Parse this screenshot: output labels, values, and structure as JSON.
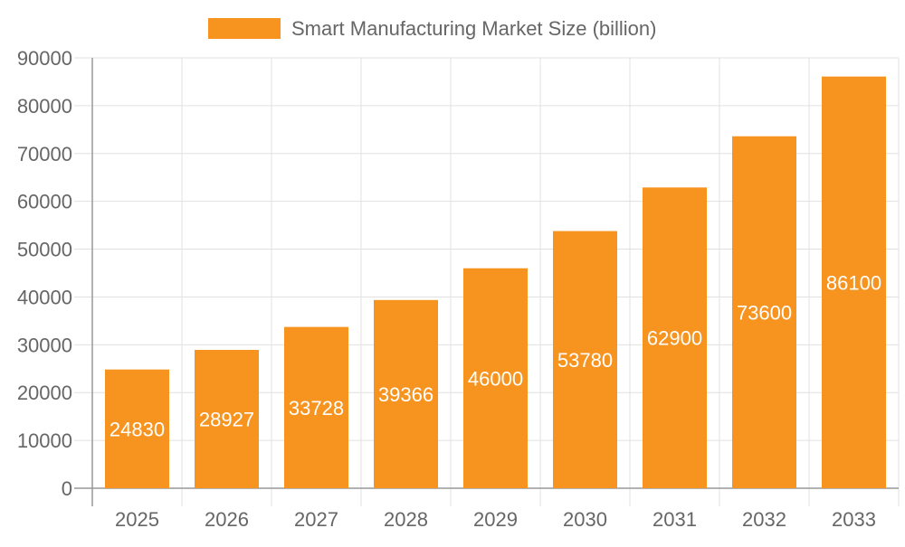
{
  "chart_data": {
    "type": "bar",
    "title": "",
    "xlabel": "",
    "ylabel": "",
    "categories": [
      "2025",
      "2026",
      "2027",
      "2028",
      "2029",
      "2030",
      "2031",
      "2032",
      "2033"
    ],
    "series": [
      {
        "name": "Smart Manufacturing Market Size (billion)",
        "values": [
          24830,
          28927,
          33728,
          39366,
          46000,
          53780,
          62900,
          73600,
          86100
        ],
        "color": "#F7941F"
      }
    ],
    "ylim": [
      0,
      90000
    ],
    "yticks": [
      "0",
      "10000",
      "20000",
      "30000",
      "40000",
      "50000",
      "60000",
      "70000",
      "80000",
      "90000"
    ],
    "grid": true,
    "legend": "top",
    "data_labels": true
  }
}
